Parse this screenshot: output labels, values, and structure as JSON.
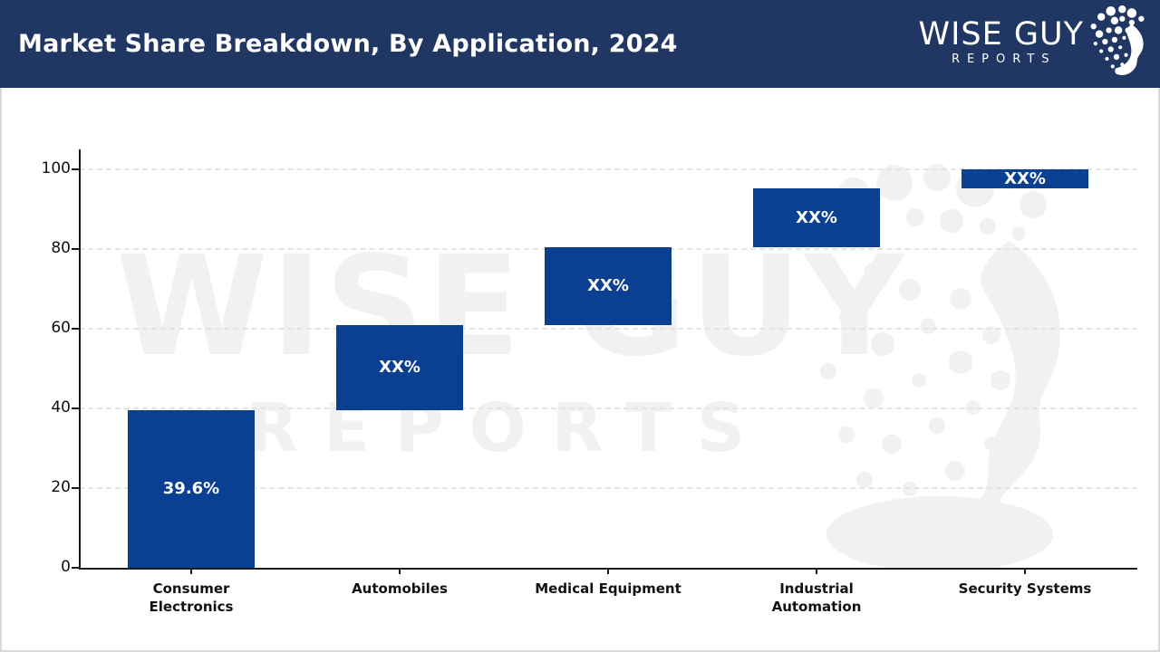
{
  "header": {
    "title": "Market Share Breakdown, By Application, 2024",
    "logo": {
      "line1": "WISE GUY",
      "line2": "REPORTS"
    }
  },
  "watermark": {
    "line1": "WISE GUY",
    "line2": "REPORTS"
  },
  "colors": {
    "header_bg": "#213763",
    "bar": "#0a3f91",
    "axis": "#1a1a1a",
    "grid": "#e4e4e4",
    "watermark": "#f1f1f4",
    "bar_label": "#ffffff"
  },
  "chart_data": {
    "type": "bar",
    "subtype": "waterfall",
    "title": "Market Share Breakdown, By Application, 2024",
    "categories": [
      "Consumer\nElectronics",
      "Automobiles",
      "Medical Equipment",
      "Industrial\nAutomation",
      "Security Systems"
    ],
    "segments": [
      {
        "category": "Consumer Electronics",
        "start": 0,
        "end": 39.6,
        "label": "39.6%"
      },
      {
        "category": "Automobiles",
        "start": 39.6,
        "end": 61.0,
        "label": "XX%"
      },
      {
        "category": "Medical Equipment",
        "start": 61.0,
        "end": 80.4,
        "label": "XX%"
      },
      {
        "category": "Industrial Automation",
        "start": 80.4,
        "end": 95.2,
        "label": "XX%"
      },
      {
        "category": "Security Systems",
        "start": 95.2,
        "end": 100.0,
        "label": "XX%"
      }
    ],
    "xlabel": "",
    "ylabel": "",
    "ylim": [
      0,
      105
    ],
    "yticks": [
      0,
      20,
      40,
      60,
      80,
      100
    ],
    "grid": "horizontal-dashed",
    "legend": "none",
    "bar_color": "#0a3f91",
    "label_color": "#ffffff"
  }
}
